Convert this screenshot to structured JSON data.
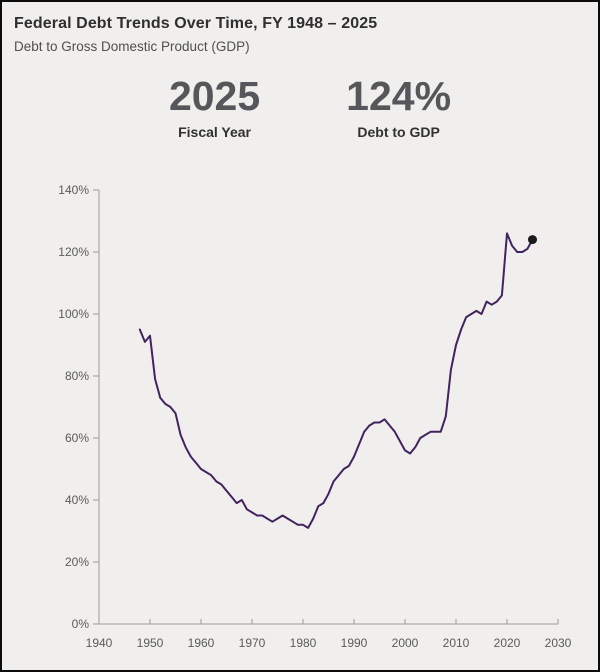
{
  "header": {
    "title": "Federal Debt Trends Over Time, FY 1948 – 2025",
    "subtitle": "Debt to Gross Domestic Product (GDP)"
  },
  "stats": {
    "fiscal_year": {
      "value": "2025",
      "label": "Fiscal Year"
    },
    "debt_to_gdp": {
      "value": "124%",
      "label": "Debt to GDP"
    }
  },
  "colors": {
    "background": "#f0efed",
    "frame": "#0c0c0c",
    "line": "#42235f",
    "axis": "#9b9b9b",
    "tick_text": "#5a5a5a",
    "endpoint_dot": "#1b1b1b"
  },
  "chart_data": {
    "type": "line",
    "title": "Federal Debt Trends Over Time, FY 1948 – 2025",
    "subtitle": "Debt to Gross Domestic Product (GDP)",
    "series_name": "Debt to GDP (%)",
    "xlabel": "Fiscal Year",
    "ylabel": "Debt to GDP (%)",
    "xlim": [
      1940,
      2030
    ],
    "ylim": [
      0,
      140
    ],
    "grid": false,
    "legend": false,
    "xticks": [
      1940,
      1950,
      1960,
      1970,
      1980,
      1990,
      2000,
      2010,
      2020,
      2030
    ],
    "xtick_labels": [
      "1940",
      "1950",
      "1960",
      "1970",
      "1980",
      "1990",
      "2000",
      "2010",
      "2020",
      "2030"
    ],
    "yticks": [
      0,
      20,
      40,
      60,
      80,
      100,
      120,
      140
    ],
    "ytick_labels": [
      "0%",
      "20%",
      "40%",
      "60%",
      "80%",
      "100%",
      "120%",
      "140%"
    ],
    "x": [
      1948,
      1949,
      1950,
      1951,
      1952,
      1953,
      1954,
      1955,
      1956,
      1957,
      1958,
      1959,
      1960,
      1961,
      1962,
      1963,
      1964,
      1965,
      1966,
      1967,
      1968,
      1969,
      1970,
      1971,
      1972,
      1973,
      1974,
      1975,
      1976,
      1977,
      1978,
      1979,
      1980,
      1981,
      1982,
      1983,
      1984,
      1985,
      1986,
      1987,
      1988,
      1989,
      1990,
      1991,
      1992,
      1993,
      1994,
      1995,
      1996,
      1997,
      1998,
      1999,
      2000,
      2001,
      2002,
      2003,
      2004,
      2005,
      2006,
      2007,
      2008,
      2009,
      2010,
      2011,
      2012,
      2013,
      2014,
      2015,
      2016,
      2017,
      2018,
      2019,
      2020,
      2021,
      2022,
      2023,
      2024,
      2025
    ],
    "values": [
      95,
      91,
      93,
      79,
      73,
      71,
      70,
      68,
      61,
      57,
      54,
      52,
      50,
      49,
      48,
      46,
      45,
      43,
      41,
      39,
      40,
      37,
      36,
      35,
      35,
      34,
      33,
      34,
      35,
      34,
      33,
      32,
      32,
      31,
      34,
      38,
      39,
      42,
      46,
      48,
      50,
      51,
      54,
      58,
      62,
      64,
      65,
      65,
      66,
      64,
      62,
      59,
      56,
      55,
      57,
      60,
      61,
      62,
      62,
      62,
      67,
      82,
      90,
      95,
      99,
      100,
      101,
      100,
      104,
      103,
      104,
      106,
      126,
      122,
      120,
      120,
      121,
      124
    ],
    "endpoint_dot": {
      "x": 2025,
      "y": 124
    },
    "line_color": "#42235f"
  }
}
